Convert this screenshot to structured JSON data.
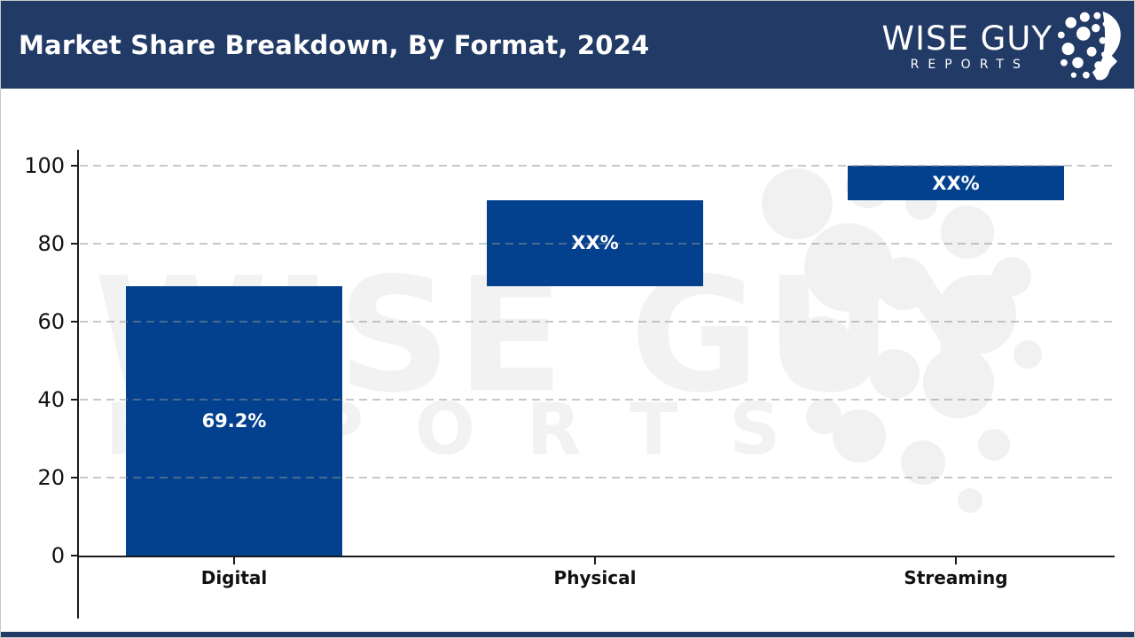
{
  "header": {
    "title": "Market Share Breakdown, By Format, 2024"
  },
  "logo": {
    "name": "WISE GUY",
    "subtitle": "REPORTS"
  },
  "watermark": {
    "line1": "WISE GUY",
    "line2": "REPORTS"
  },
  "chart_data": {
    "type": "bar",
    "subtype": "waterfall",
    "title": "Market Share Breakdown, By Format, 2024",
    "xlabel": "",
    "ylabel": "",
    "categories": [
      "Digital",
      "Physical",
      "Streaming"
    ],
    "segments": [
      {
        "category": "Digital",
        "start": 0,
        "end": 69.2,
        "value": 69.2,
        "label": "69.2%"
      },
      {
        "category": "Physical",
        "start": 69.2,
        "end": 91.1,
        "value": 21.9,
        "label": "XX%"
      },
      {
        "category": "Streaming",
        "start": 91.1,
        "end": 100,
        "value": 8.9,
        "label": "XX%"
      }
    ],
    "ylim": [
      0,
      100
    ],
    "yticks": [
      0,
      20,
      40,
      60,
      80,
      100
    ],
    "grid": "horizontal-dashed",
    "legend": "none",
    "bar_color": "#03418F",
    "bar_label_color": "#FFFFFF"
  },
  "colors": {
    "header_bg": "#213A66",
    "footer_bg": "#213A66",
    "bar": "#03418F",
    "axis": "#1A1A1A",
    "watermark": "#F2F2F2"
  }
}
